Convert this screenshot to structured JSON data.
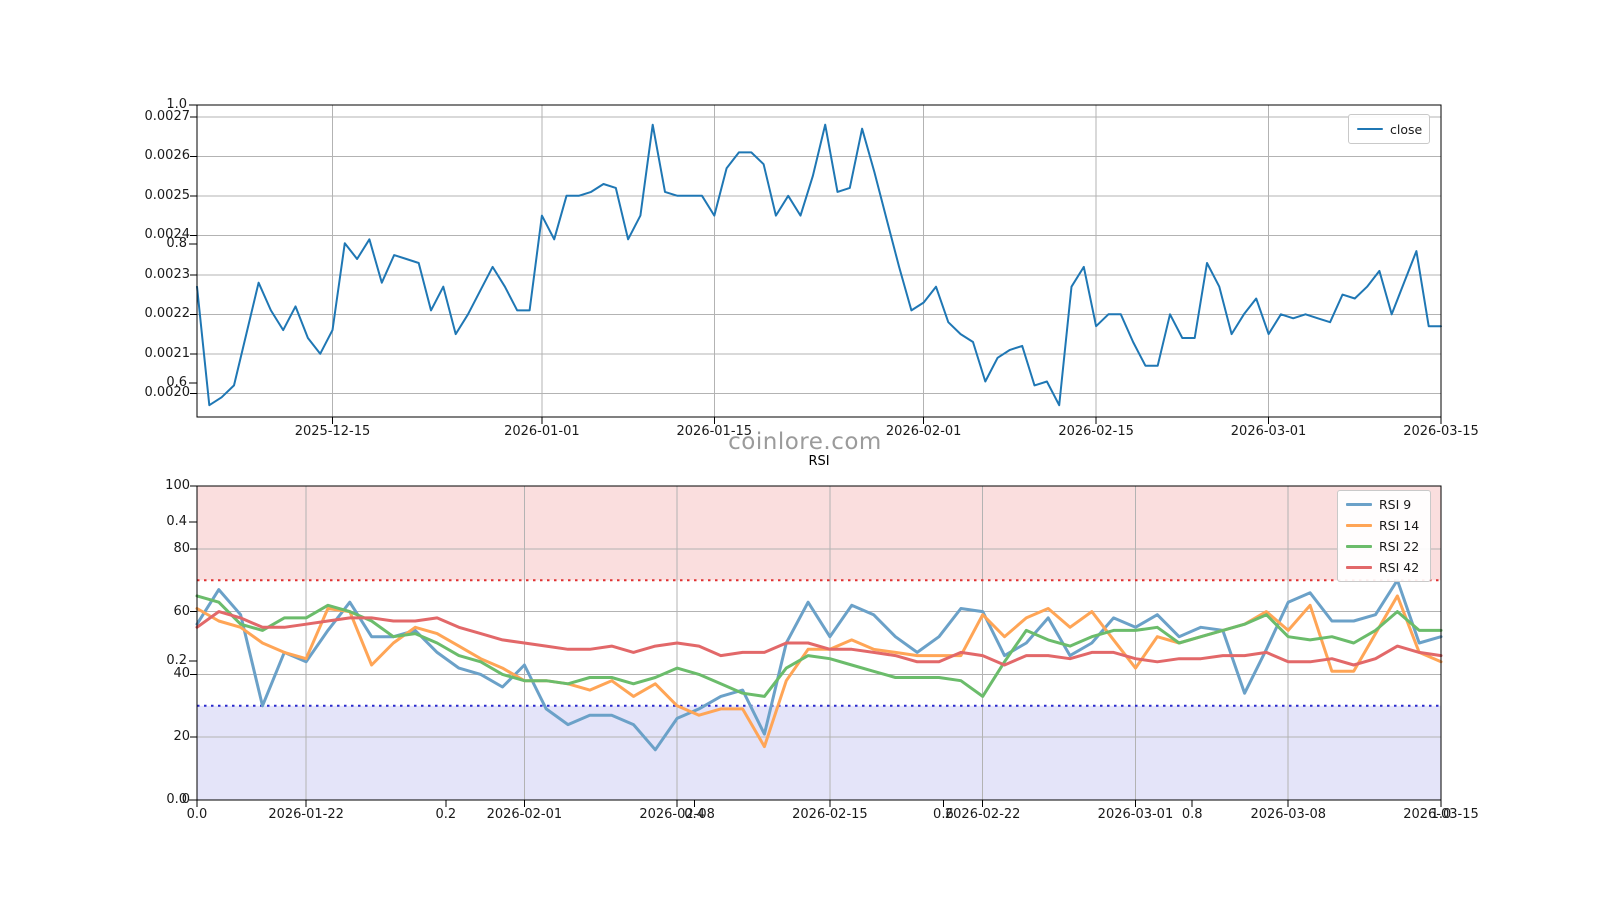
{
  "watermark": {
    "text": "coinlore.com",
    "color": "#9b9b9b"
  },
  "overlay_axis": {
    "x_labels": [
      "0.0",
      "0.2",
      "0.4",
      "0.6",
      "0.8",
      "1.0"
    ],
    "y_labels": [
      "0.0",
      "0.2",
      "0.4",
      "0.6",
      "0.8",
      "1.0"
    ]
  },
  "chart_data": [
    {
      "type": "line",
      "id": "price",
      "title": "",
      "grid": true,
      "legend": {
        "position": "top-right",
        "entries": [
          {
            "label": "close",
            "color": "#1f77b4"
          }
        ]
      },
      "x_start_date": "2025-12-04",
      "x_freq": "daily",
      "x_ticks": [
        "2025-12-15",
        "2026-01-01",
        "2026-01-15",
        "2026-02-01",
        "2026-02-15",
        "2026-03-01",
        "2026-03-15"
      ],
      "y_ticks": [
        {
          "label": "0.0020",
          "value": 0.002
        },
        {
          "label": "0.0021",
          "value": 0.0021
        },
        {
          "label": "0.0022",
          "value": 0.0022
        },
        {
          "label": "0.0023",
          "value": 0.0023
        },
        {
          "label": "0.0024",
          "value": 0.0024
        },
        {
          "label": "0.0025",
          "value": 0.0025
        },
        {
          "label": "0.0026",
          "value": 0.0026
        },
        {
          "label": "0.0027",
          "value": 0.0027
        }
      ],
      "ylim": [
        0.00194,
        0.00273
      ],
      "series": [
        {
          "name": "close",
          "color": "#1f77b4",
          "width": 2,
          "values": [
            0.00227,
            0.00197,
            0.00199,
            0.00202,
            0.00215,
            0.00228,
            0.00221,
            0.00216,
            0.00222,
            0.00214,
            0.0021,
            0.00216,
            0.00238,
            0.00234,
            0.00239,
            0.00228,
            0.00235,
            0.00234,
            0.00233,
            0.00221,
            0.00227,
            0.00215,
            0.0022,
            0.00226,
            0.00232,
            0.00227,
            0.00221,
            0.00221,
            0.00245,
            0.00239,
            0.0025,
            0.0025,
            0.00251,
            0.00253,
            0.00252,
            0.00239,
            0.00245,
            0.00268,
            0.00251,
            0.0025,
            0.0025,
            0.0025,
            0.00245,
            0.00257,
            0.00261,
            0.00261,
            0.00258,
            0.00245,
            0.0025,
            0.00245,
            0.00255,
            0.00268,
            0.00251,
            0.00252,
            0.00267,
            0.00256,
            0.00244,
            0.00232,
            0.00221,
            0.00223,
            0.00227,
            0.00218,
            0.00215,
            0.00213,
            0.00203,
            0.00209,
            0.00211,
            0.00212,
            0.00202,
            0.00203,
            0.00197,
            0.00227,
            0.00232,
            0.00217,
            0.0022,
            0.0022,
            0.00213,
            0.00207,
            0.00207,
            0.0022,
            0.00214,
            0.00214,
            0.00233,
            0.00227,
            0.00215,
            0.0022,
            0.00224,
            0.00215,
            0.0022,
            0.00219,
            0.0022,
            0.00219,
            0.00218,
            0.00225,
            0.00224,
            0.00227,
            0.00231,
            0.0022,
            0.00228,
            0.00236,
            0.00217,
            0.00217
          ]
        }
      ]
    },
    {
      "type": "line",
      "id": "rsi",
      "title": "RSI",
      "grid": true,
      "legend": {
        "position": "top-right",
        "entries": [
          {
            "label": "RSI 9",
            "color": "#6ba1c8"
          },
          {
            "label": "RSI 14",
            "color": "#ffa556"
          },
          {
            "label": "RSI 22",
            "color": "#6bbc6b"
          },
          {
            "label": "RSI 42",
            "color": "#e26869"
          }
        ]
      },
      "x_start_date": "2026-01-17",
      "x_freq": "daily",
      "x_ticks": [
        "2026-01-22",
        "2026-02-01",
        "2026-02-08",
        "2026-02-15",
        "2026-02-22",
        "2026-03-01",
        "2026-03-08",
        "2026-03-15"
      ],
      "y_ticks": [
        {
          "label": "0",
          "value": 0
        },
        {
          "label": "20",
          "value": 20
        },
        {
          "label": "40",
          "value": 40
        },
        {
          "label": "60",
          "value": 60
        },
        {
          "label": "80",
          "value": 80
        },
        {
          "label": "100",
          "value": 100
        }
      ],
      "ylim": [
        0,
        100
      ],
      "bands": [
        {
          "from": 70,
          "to": 100,
          "color": "#fadede"
        },
        {
          "from": 0,
          "to": 30,
          "color": "#e4e4f9"
        }
      ],
      "hlines": [
        {
          "value": 70,
          "color": "#e03030",
          "style": "dotted"
        },
        {
          "value": 30,
          "color": "#2828cc",
          "style": "dotted"
        }
      ],
      "series": [
        {
          "name": "RSI 9",
          "color": "#6ba1c8",
          "width": 3,
          "values": [
            56,
            67,
            59,
            30,
            47,
            44,
            54,
            63,
            52,
            52,
            54,
            47,
            42,
            40,
            36,
            43,
            29,
            24,
            27,
            27,
            24,
            16,
            26,
            29,
            33,
            35,
            21,
            50,
            63,
            52,
            62,
            59,
            52,
            47,
            52,
            61,
            60,
            46,
            50,
            58,
            46,
            50,
            58,
            55,
            59,
            52,
            55,
            54,
            34,
            48,
            63,
            66,
            57,
            57,
            59,
            70,
            50,
            52
          ]
        },
        {
          "name": "RSI 14",
          "color": "#ffa556",
          "width": 3,
          "values": [
            61,
            57,
            55,
            50,
            47,
            45,
            61,
            60,
            43,
            50,
            55,
            53,
            49,
            45,
            42,
            38,
            38,
            37,
            35,
            38,
            33,
            37,
            30,
            27,
            29,
            29,
            17,
            38,
            48,
            48,
            51,
            48,
            47,
            46,
            46,
            46,
            59,
            52,
            58,
            61,
            55,
            60,
            51,
            42,
            52,
            50,
            52,
            54,
            56,
            60,
            54,
            62,
            41,
            41,
            53,
            65,
            47,
            44
          ]
        },
        {
          "name": "RSI 22",
          "color": "#6bbc6b",
          "width": 3,
          "values": [
            65,
            63,
            56,
            54,
            58,
            58,
            62,
            60,
            57,
            52,
            53,
            50,
            46,
            44,
            40,
            38,
            38,
            37,
            39,
            39,
            37,
            39,
            42,
            40,
            37,
            34,
            33,
            42,
            46,
            45,
            43,
            41,
            39,
            39,
            39,
            38,
            33,
            44,
            54,
            51,
            49,
            52,
            54,
            54,
            55,
            50,
            52,
            54,
            56,
            59,
            52,
            51,
            52,
            50,
            54,
            60,
            54,
            54
          ]
        },
        {
          "name": "RSI 42",
          "color": "#e26869",
          "width": 3,
          "values": [
            55,
            60,
            58,
            55,
            55,
            56,
            57,
            58,
            58,
            57,
            57,
            58,
            55,
            53,
            51,
            50,
            49,
            48,
            48,
            49,
            47,
            49,
            50,
            49,
            46,
            47,
            47,
            50,
            50,
            48,
            48,
            47,
            46,
            44,
            44,
            47,
            46,
            43,
            46,
            46,
            45,
            47,
            47,
            45,
            44,
            45,
            45,
            46,
            46,
            47,
            44,
            44,
            45,
            43,
            45,
            49,
            47,
            46
          ]
        }
      ]
    }
  ]
}
